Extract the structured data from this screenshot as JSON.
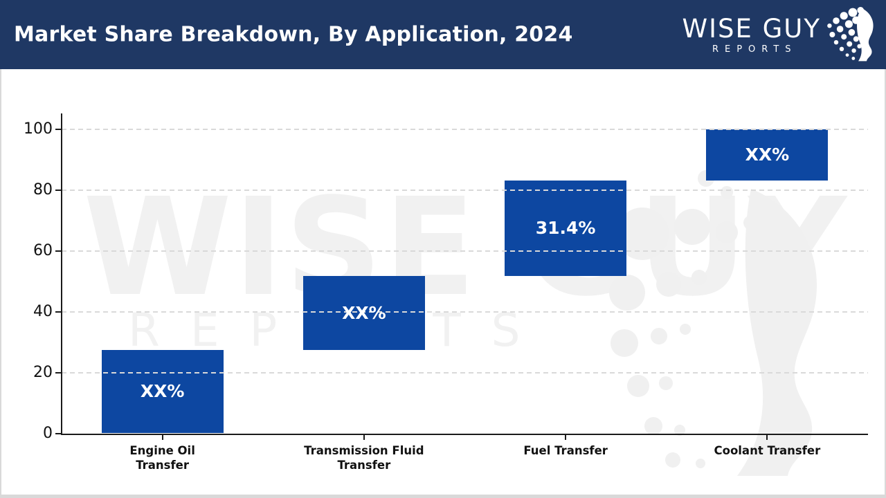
{
  "header": {
    "title": "Market Share Breakdown, By Application, 2024",
    "logo": {
      "line1": "WISE GUY",
      "line2": "REPORTS"
    }
  },
  "watermark": {
    "line1": "WISE GUY",
    "line2": "REPORTS"
  },
  "colors": {
    "header_bg": "#1f3864",
    "bar": "#0d47a1",
    "bar_label": "#ffffff",
    "gridline": "#d9d9d9",
    "axis": "#1a1a1a",
    "watermark": "#f1f1f1"
  },
  "chart_data": {
    "type": "waterfall",
    "title": "Market Share Breakdown, By Application, 2024",
    "categories": [
      [
        "Engine Oil",
        "Transfer"
      ],
      [
        "Transmission Fluid",
        "Transfer"
      ],
      [
        "Fuel Transfer"
      ],
      [
        "Coolant Transfer"
      ]
    ],
    "segments": [
      {
        "category": "Engine Oil Transfer",
        "start": 0,
        "end": 27.3,
        "value": 27.3,
        "label": "XX%"
      },
      {
        "category": "Transmission Fluid Transfer",
        "start": 27.3,
        "end": 51.7,
        "value": 24.4,
        "label": "XX%"
      },
      {
        "category": "Fuel Transfer",
        "start": 51.7,
        "end": 83.1,
        "value": 31.4,
        "label": "31.4%"
      },
      {
        "category": "Coolant Transfer",
        "start": 83.1,
        "end": 100,
        "value": 16.9,
        "label": "XX%"
      }
    ],
    "y_ticks": [
      0,
      20,
      40,
      60,
      80,
      100
    ],
    "ylim": [
      0,
      100
    ],
    "grid": {
      "horizontal": true,
      "style": "dashed",
      "above_bars": true
    },
    "legend": "none"
  }
}
